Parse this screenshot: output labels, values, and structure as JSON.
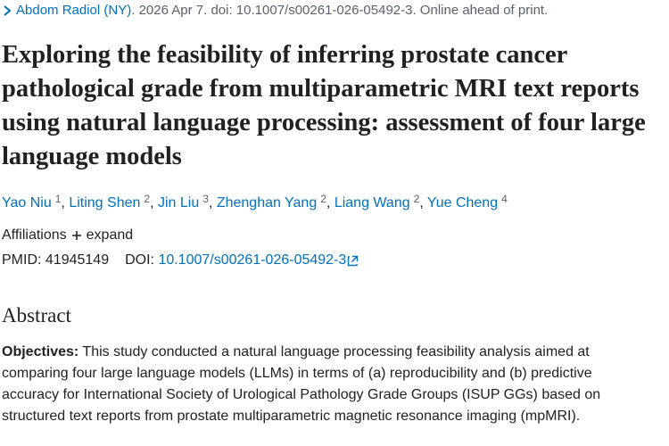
{
  "citation": {
    "journal": "Abdom Radiol (NY).",
    "details": "2026 Apr 7. doi: 10.1007/s00261-026-05492-3. Online ahead of print."
  },
  "title": "Exploring the feasibility of inferring prostate cancer pathological grade from multiparametric MRI text reports using natural language processing: assessment of four large language models",
  "authors": {
    "separator": ",",
    "list": [
      {
        "name": "Yao Niu",
        "affiliation": "1"
      },
      {
        "name": "Liting Shen",
        "affiliation": "2"
      },
      {
        "name": "Jin Liu",
        "affiliation": "3"
      },
      {
        "name": "Zhenghan Yang",
        "affiliation": "2"
      },
      {
        "name": "Liang Wang",
        "affiliation": "2"
      },
      {
        "name": "Yue Cheng",
        "affiliation": "4"
      }
    ]
  },
  "affiliations": {
    "label": "Affiliations",
    "toggle": "expand"
  },
  "identifiers": {
    "pmid_label": "PMID:",
    "pmid": "41945149",
    "doi_label": "DOI:",
    "doi": "10.1007/s00261-026-05492-3"
  },
  "abstract": {
    "heading": "Abstract",
    "objectives_label": "Objectives:",
    "objectives_text": "This study conducted a natural language processing feasibility analysis aimed at comparing four large language models (LLMs) in terms of (a) reproducibility and (b) predictive accuracy for International Society of Urological Pathology Grade Groups (ISUP GGs) based on structured text reports from prostate multiparametric magnetic resonance imaging (mpMRI)."
  }
}
